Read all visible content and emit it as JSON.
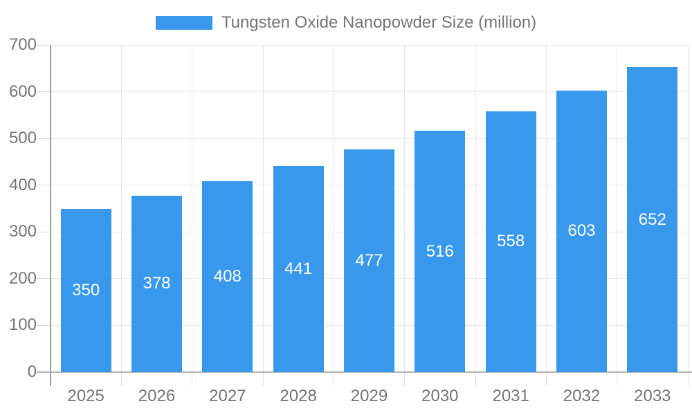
{
  "legend": {
    "label": "Tungsten Oxide Nanopowder Size (million)"
  },
  "chart_data": {
    "type": "bar",
    "title": "",
    "xlabel": "",
    "ylabel": "",
    "series_name": "Tungsten Oxide Nanopowder Size (million)",
    "categories": [
      "2025",
      "2026",
      "2027",
      "2028",
      "2029",
      "2030",
      "2031",
      "2032",
      "2033"
    ],
    "values": [
      350,
      378,
      408,
      441,
      477,
      516,
      558,
      603,
      652
    ],
    "ylim": [
      0,
      700
    ],
    "yticks": [
      0,
      100,
      200,
      300,
      400,
      500,
      600,
      700
    ],
    "grid": true,
    "legend_position": "top-center",
    "value_labels": "inside-center",
    "colors": {
      "bar": "#3898EC",
      "value_label": "#ffffff",
      "axis_text": "#757575",
      "grid_line": "#e6e6e6",
      "y_axis_line": "#999999",
      "x_axis_line": "#b3b3b3"
    }
  }
}
